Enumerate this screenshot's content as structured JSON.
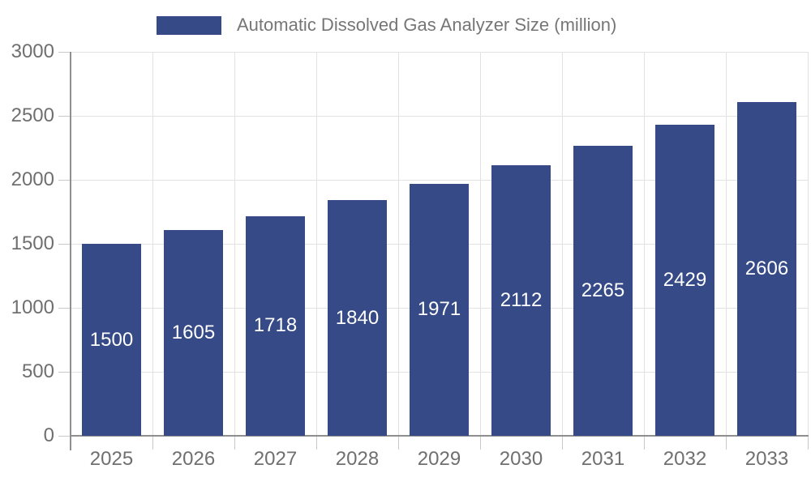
{
  "chart_data": {
    "type": "bar",
    "title": "Automatic Dissolved Gas Analyzer Size (million)",
    "legend_label": "Automatic Dissolved Gas Analyzer Size (million)",
    "legend_position": "top",
    "categories": [
      "2025",
      "2026",
      "2027",
      "2028",
      "2029",
      "2030",
      "2031",
      "2032",
      "2033"
    ],
    "values": [
      1500,
      1605,
      1718,
      1840,
      1971,
      2112,
      2265,
      2429,
      2606
    ],
    "yticks": [
      0,
      500,
      1000,
      1500,
      2000,
      2500,
      3000
    ],
    "ylim": [
      0,
      3000
    ],
    "xlabel": "",
    "ylabel": "",
    "grid": true,
    "bar_color": "#354a86",
    "bar_label_color": "#ffffff",
    "axis_label_color": "#6f6f6f",
    "grid_color": "#e2e2e2",
    "axis_line_color": "#8f8f8f"
  }
}
